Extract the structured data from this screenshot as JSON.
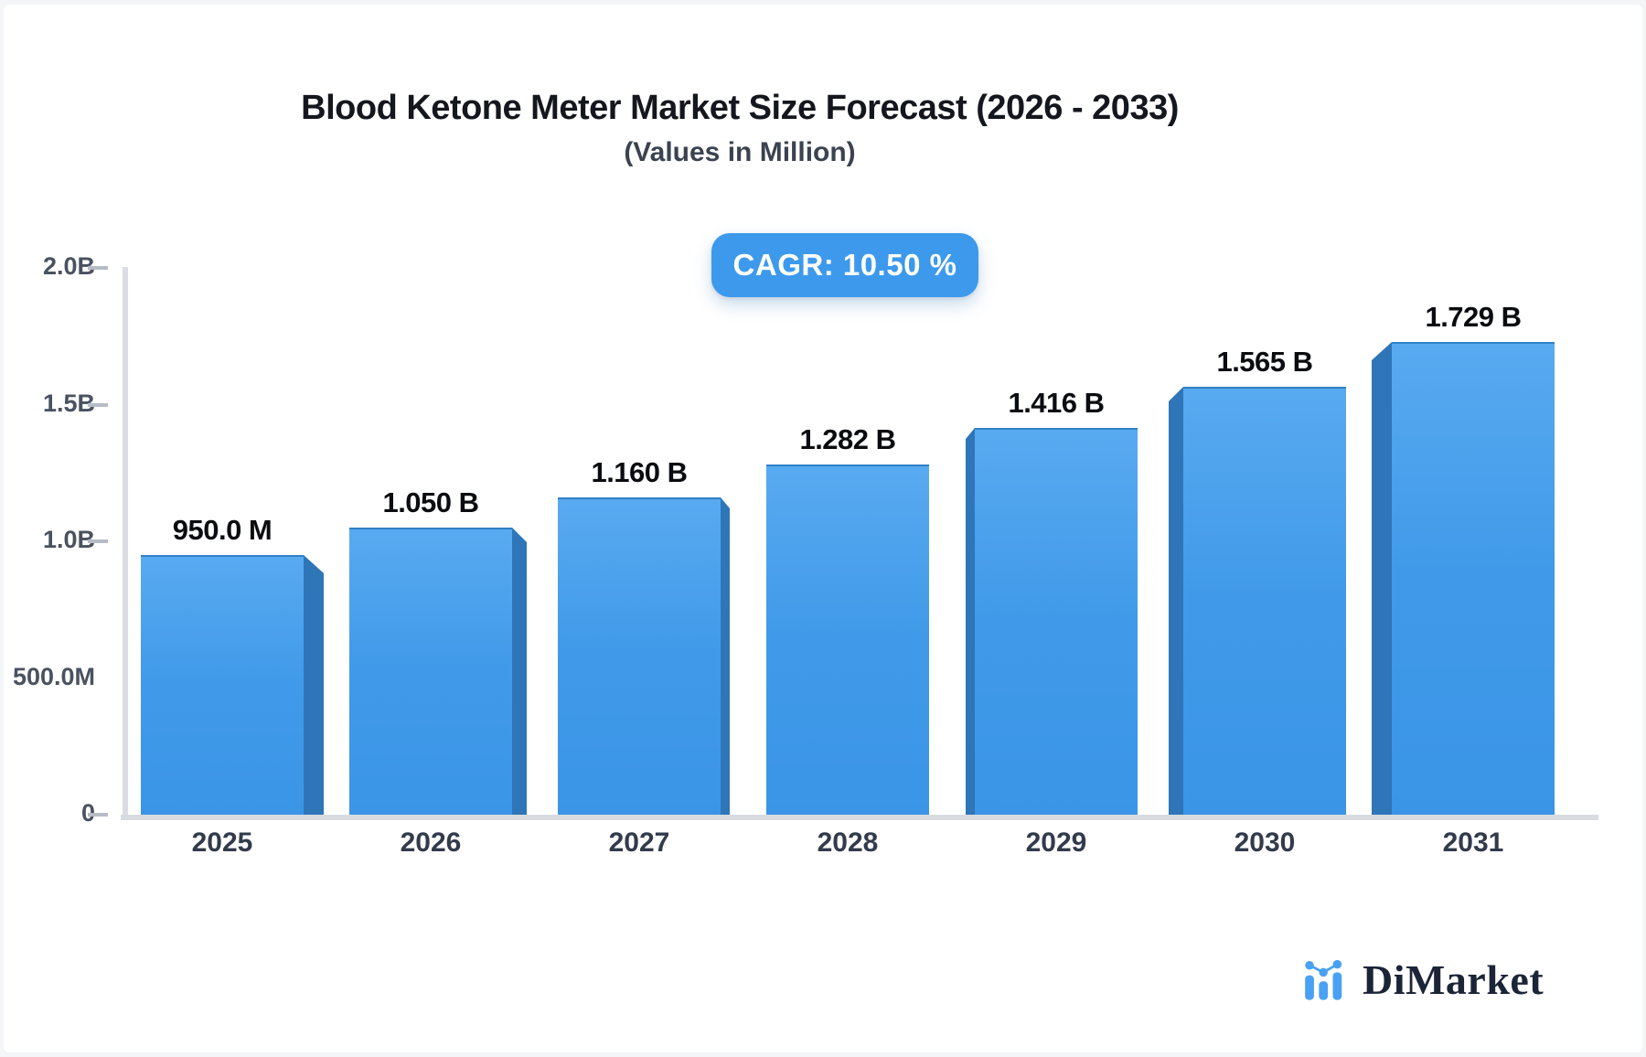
{
  "header": {
    "title": "Blood Ketone Meter Market Size Forecast (2026 - 2033)",
    "subtitle": "(Values in Million)",
    "cagr_badge": "CAGR: 10.50 %"
  },
  "chart_data": {
    "type": "bar",
    "title": "Blood Ketone Meter Market Size Forecast (2026 - 2033)",
    "subtitle": "(Values in Million)",
    "cagr_percent": 10.5,
    "categories": [
      "2025",
      "2026",
      "2027",
      "2028",
      "2029",
      "2030",
      "2031"
    ],
    "values_million": [
      950,
      1050,
      1160,
      1282,
      1416,
      1565,
      1729
    ],
    "value_labels": [
      "950.0 M",
      "1.050 B",
      "1.160 B",
      "1.282 B",
      "1.416 B",
      "1.565 B",
      "1.729 B"
    ],
    "ylim": [
      0,
      2000
    ],
    "y_ticks": [
      {
        "label": "2.0B",
        "value_million": 2000,
        "dash": true
      },
      {
        "label": "1.5B",
        "value_million": 1500,
        "dash": true
      },
      {
        "label": "1.0B",
        "value_million": 1000,
        "dash": true
      },
      {
        "label": "500.0M",
        "value_million": 500,
        "dash": false
      },
      {
        "label": "0",
        "value_million": 0,
        "dash": true
      }
    ],
    "legend": "none",
    "grid": "off",
    "bar_style": "3d-perspective"
  },
  "logo": {
    "text": "DiMarket",
    "icon": "mini-bar-chart-with-trend-dots-icon"
  },
  "colors": {
    "accent": "#3d99ec",
    "bar_light": "#58aaf0",
    "bar_mid": "#419ae9",
    "bar_deep": "#3b95e7",
    "bar_side": "#2e76b8",
    "axis": "#d8dbe0",
    "logo_blue": "#4aa1f3",
    "logo_navy": "#1c2438"
  }
}
